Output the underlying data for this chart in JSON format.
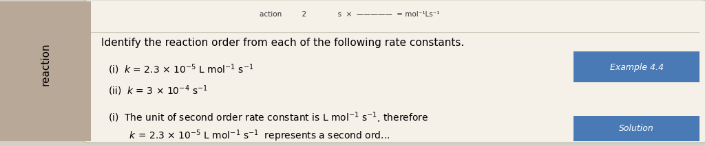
{
  "bg_color": "#d6cfc4",
  "box_bg": "#f5f0e8",
  "blue_tab_color": "#4a7ab5",
  "title_text": "Identify the reaction order from each of the following rate constants.",
  "example_label": "Example 4.4",
  "item_i": "(i)  k = 2.3 × 10⁻⁵ L mol⁻¹ s⁻¹",
  "item_ii": "(ii)  k = 3 × 10⁻⁴ s⁻¹",
  "solution_line1": "(i)  The unit of second order rate constant is L mol⁻¹ s⁻¹, therefore",
  "solution_line2": "      k = 2.3 × 10⁻⁵ L mol⁻¹ s⁻¹  represents a second ord...",
  "solution_label": "Solution",
  "left_tab_text": "reaction",
  "top_table_text": "2        s  ×  ——————  = mol⁻¹Ls⁻¹",
  "font_size_title": 11,
  "font_size_body": 10,
  "font_size_tab": 11
}
